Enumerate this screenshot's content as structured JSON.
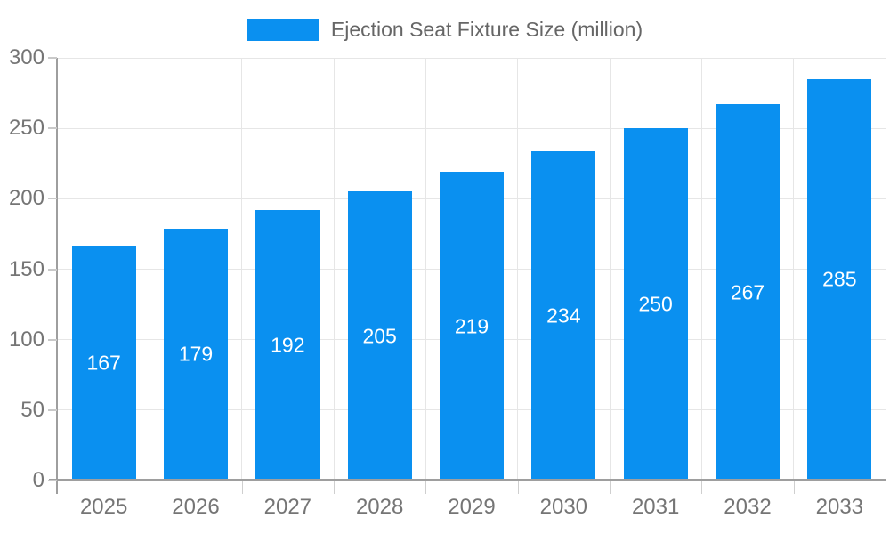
{
  "legend": {
    "label": "Ejection Seat Fixture Size (million)"
  },
  "colors": {
    "bar": "#0a90f0",
    "bar_label_text": "#ffffff",
    "axis_line": "#9e9e9e",
    "gridline": "#e6e6e6",
    "tick_text": "#757575",
    "legend_text": "#666666"
  },
  "chart_data": {
    "type": "bar",
    "title": "Ejection Seat Fixture Size (million)",
    "categories": [
      "2025",
      "2026",
      "2027",
      "2028",
      "2029",
      "2030",
      "2031",
      "2032",
      "2033"
    ],
    "values": [
      167,
      179,
      192,
      205,
      219,
      234,
      250,
      267,
      285
    ],
    "xlabel": "",
    "ylabel": "",
    "ylim": [
      0,
      300
    ],
    "yticks": [
      0,
      50,
      100,
      150,
      200,
      250,
      300
    ],
    "grid": true,
    "legend_position": "top-center",
    "value_labels_position": "inside-center"
  }
}
